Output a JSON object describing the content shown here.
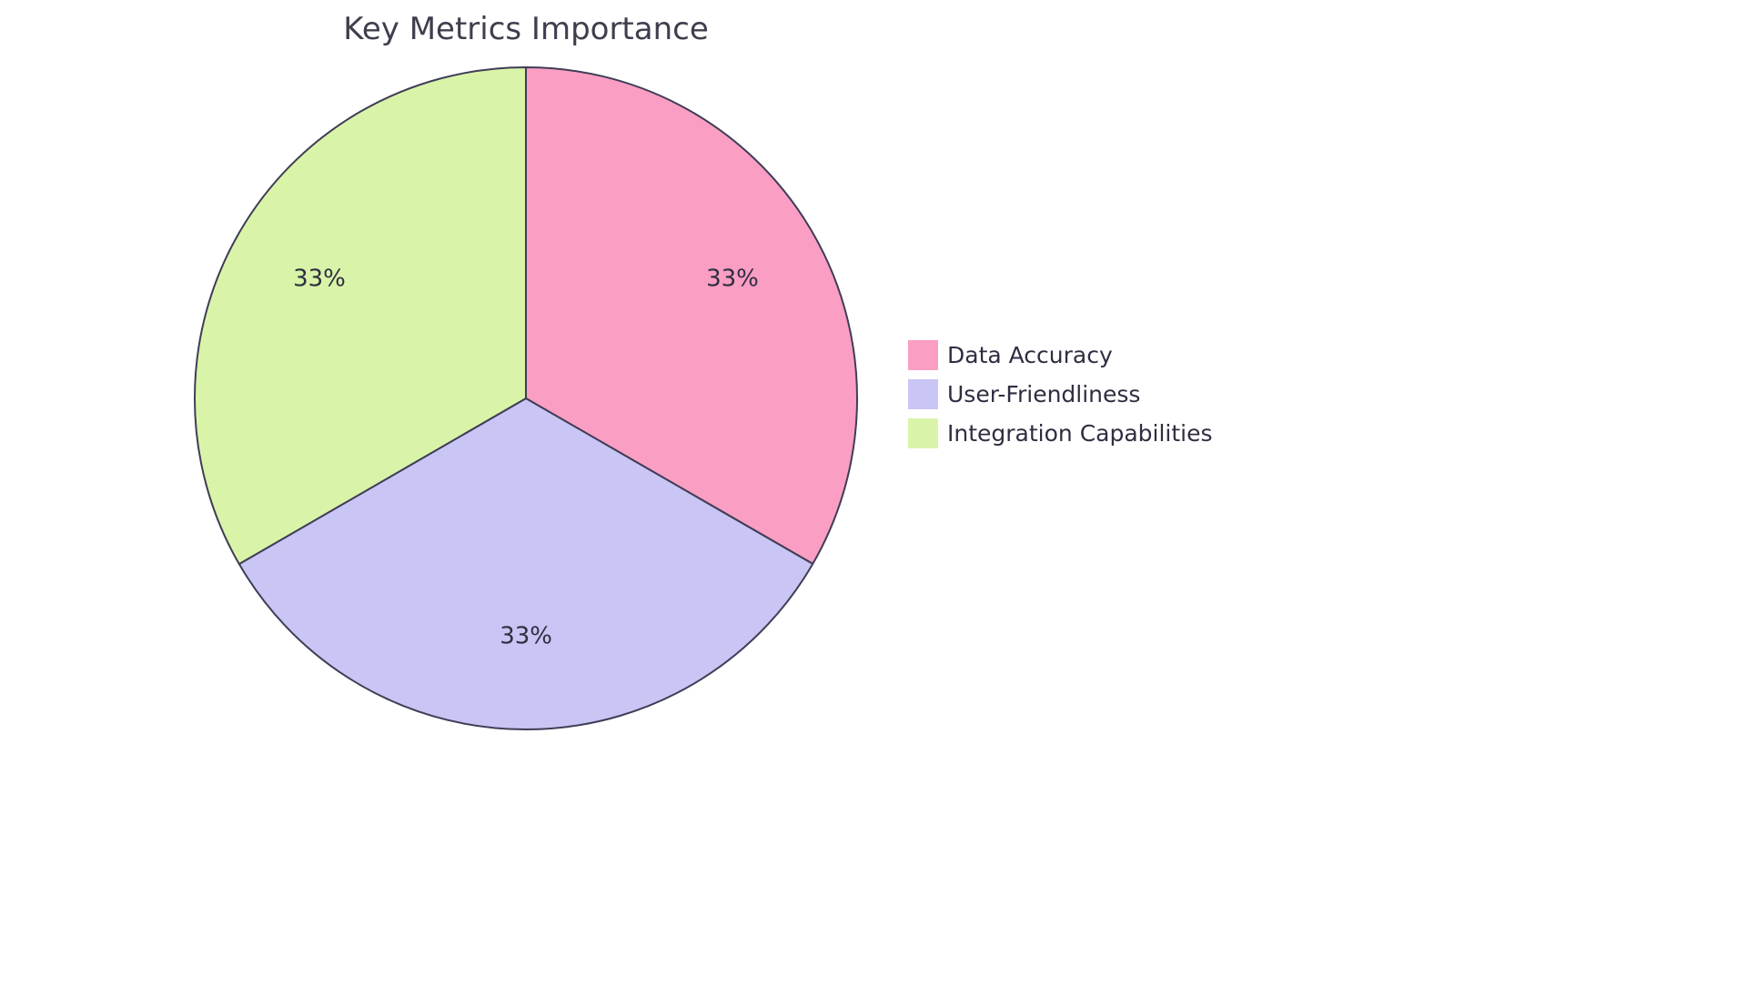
{
  "chart_data": {
    "type": "pie",
    "title": "Key Metrics Importance",
    "categories": [
      "Data Accuracy",
      "User-Friendliness",
      "Integration Capabilities"
    ],
    "values": [
      33.33,
      33.33,
      33.34
    ],
    "percent_labels": [
      "33%",
      "33%",
      "33%"
    ],
    "colors": [
      "#FA9EC4",
      "#C9C5F4",
      "#D9F4A8"
    ],
    "stroke_color": "#3F3D56",
    "label_color": "#2F2E41",
    "title_color": "#3F3E4D",
    "legend_position": "right",
    "start_angle_deg": 0,
    "direction": "clockwise"
  }
}
